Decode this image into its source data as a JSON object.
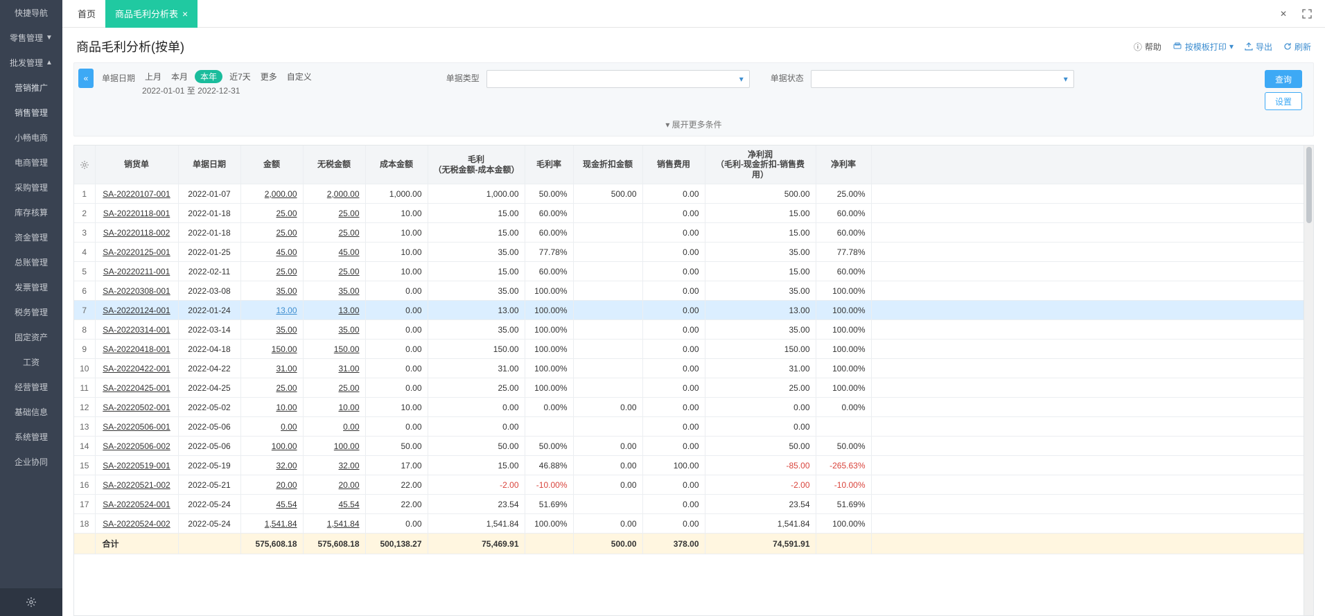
{
  "sidebar": {
    "items": [
      {
        "label": "快捷导航",
        "caret": ""
      },
      {
        "label": "零售管理",
        "caret": "▼"
      },
      {
        "label": "批发管理",
        "caret": "▲"
      },
      {
        "label": "营销推广",
        "caret": "",
        "sub": true
      },
      {
        "label": "销售管理",
        "caret": "",
        "sub": true
      },
      {
        "label": "小畅电商",
        "caret": ""
      },
      {
        "label": "电商管理",
        "caret": ""
      },
      {
        "label": "采购管理",
        "caret": ""
      },
      {
        "label": "库存核算",
        "caret": ""
      },
      {
        "label": "资金管理",
        "caret": ""
      },
      {
        "label": "总账管理",
        "caret": ""
      },
      {
        "label": "发票管理",
        "caret": ""
      },
      {
        "label": "税务管理",
        "caret": ""
      },
      {
        "label": "固定资产",
        "caret": ""
      },
      {
        "label": "工资",
        "caret": ""
      },
      {
        "label": "经营管理",
        "caret": ""
      },
      {
        "label": "基础信息",
        "caret": ""
      },
      {
        "label": "系统管理",
        "caret": ""
      },
      {
        "label": "企业协同",
        "caret": ""
      }
    ]
  },
  "tabs": {
    "home": "首页",
    "active": "商品毛利分析表"
  },
  "page": {
    "title": "商品毛利分析(按单)",
    "help": "帮助",
    "print": "按模板打印",
    "export": "导出",
    "refresh": "刷新"
  },
  "filters": {
    "dateLabel": "单据日期",
    "dtabs": [
      "上月",
      "本月",
      "本年",
      "近7天",
      "更多",
      "自定义"
    ],
    "dateRange": "2022-01-01 至 2022-12-31",
    "typeLabel": "单据类型",
    "stateLabel": "单据状态",
    "queryBtn": "查询",
    "settingBtn": "设置",
    "expand": "展开更多条件"
  },
  "table": {
    "columns": [
      "销货单",
      "单据日期",
      "金额",
      "无税金额",
      "成本金额",
      "毛利\n（无税金额-成本金额）",
      "毛利率",
      "现金折扣金额",
      "销售费用",
      "净利润\n（毛利-现金折扣-销售费用）",
      "净利率"
    ],
    "rows": [
      {
        "n": 1,
        "order": "SA-20220107-001",
        "date": "2022-01-07",
        "amt": "2,000.00",
        "ntax": "2,000.00",
        "cost": "1,000.00",
        "gp": "1,000.00",
        "gpr": "50.00%",
        "disc": "500.00",
        "exp": "0.00",
        "np": "500.00",
        "npr": "25.00%"
      },
      {
        "n": 2,
        "order": "SA-20220118-001",
        "date": "2022-01-18",
        "amt": "25.00",
        "ntax": "25.00",
        "cost": "10.00",
        "gp": "15.00",
        "gpr": "60.00%",
        "disc": "",
        "exp": "0.00",
        "np": "15.00",
        "npr": "60.00%"
      },
      {
        "n": 3,
        "order": "SA-20220118-002",
        "date": "2022-01-18",
        "amt": "25.00",
        "ntax": "25.00",
        "cost": "10.00",
        "gp": "15.00",
        "gpr": "60.00%",
        "disc": "",
        "exp": "0.00",
        "np": "15.00",
        "npr": "60.00%"
      },
      {
        "n": 4,
        "order": "SA-20220125-001",
        "date": "2022-01-25",
        "amt": "45.00",
        "ntax": "45.00",
        "cost": "10.00",
        "gp": "35.00",
        "gpr": "77.78%",
        "disc": "",
        "exp": "0.00",
        "np": "35.00",
        "npr": "77.78%"
      },
      {
        "n": 5,
        "order": "SA-20220211-001",
        "date": "2022-02-11",
        "amt": "25.00",
        "ntax": "25.00",
        "cost": "10.00",
        "gp": "15.00",
        "gpr": "60.00%",
        "disc": "",
        "exp": "0.00",
        "np": "15.00",
        "npr": "60.00%"
      },
      {
        "n": 6,
        "order": "SA-20220308-001",
        "date": "2022-03-08",
        "amt": "35.00",
        "ntax": "35.00",
        "cost": "0.00",
        "gp": "35.00",
        "gpr": "100.00%",
        "disc": "",
        "exp": "0.00",
        "np": "35.00",
        "npr": "100.00%"
      },
      {
        "n": 7,
        "order": "SA-20220124-001",
        "date": "2022-01-24",
        "amt": "13.00",
        "ntax": "13.00",
        "cost": "0.00",
        "gp": "13.00",
        "gpr": "100.00%",
        "disc": "",
        "exp": "0.00",
        "np": "13.00",
        "npr": "100.00%",
        "hl": true
      },
      {
        "n": 8,
        "order": "SA-20220314-001",
        "date": "2022-03-14",
        "amt": "35.00",
        "ntax": "35.00",
        "cost": "0.00",
        "gp": "35.00",
        "gpr": "100.00%",
        "disc": "",
        "exp": "0.00",
        "np": "35.00",
        "npr": "100.00%"
      },
      {
        "n": 9,
        "order": "SA-20220418-001",
        "date": "2022-04-18",
        "amt": "150.00",
        "ntax": "150.00",
        "cost": "0.00",
        "gp": "150.00",
        "gpr": "100.00%",
        "disc": "",
        "exp": "0.00",
        "np": "150.00",
        "npr": "100.00%"
      },
      {
        "n": 10,
        "order": "SA-20220422-001",
        "date": "2022-04-22",
        "amt": "31.00",
        "ntax": "31.00",
        "cost": "0.00",
        "gp": "31.00",
        "gpr": "100.00%",
        "disc": "",
        "exp": "0.00",
        "np": "31.00",
        "npr": "100.00%"
      },
      {
        "n": 11,
        "order": "SA-20220425-001",
        "date": "2022-04-25",
        "amt": "25.00",
        "ntax": "25.00",
        "cost": "0.00",
        "gp": "25.00",
        "gpr": "100.00%",
        "disc": "",
        "exp": "0.00",
        "np": "25.00",
        "npr": "100.00%"
      },
      {
        "n": 12,
        "order": "SA-20220502-001",
        "date": "2022-05-02",
        "amt": "10.00",
        "ntax": "10.00",
        "cost": "10.00",
        "gp": "0.00",
        "gpr": "0.00%",
        "disc": "0.00",
        "exp": "0.00",
        "np": "0.00",
        "npr": "0.00%"
      },
      {
        "n": 13,
        "order": "SA-20220506-001",
        "date": "2022-05-06",
        "amt": "0.00",
        "ntax": "0.00",
        "cost": "0.00",
        "gp": "0.00",
        "gpr": "",
        "disc": "",
        "exp": "0.00",
        "np": "0.00",
        "npr": ""
      },
      {
        "n": 14,
        "order": "SA-20220506-002",
        "date": "2022-05-06",
        "amt": "100.00",
        "ntax": "100.00",
        "cost": "50.00",
        "gp": "50.00",
        "gpr": "50.00%",
        "disc": "0.00",
        "exp": "0.00",
        "np": "50.00",
        "npr": "50.00%"
      },
      {
        "n": 15,
        "order": "SA-20220519-001",
        "date": "2022-05-19",
        "amt": "32.00",
        "ntax": "32.00",
        "cost": "17.00",
        "gp": "15.00",
        "gpr": "46.88%",
        "disc": "0.00",
        "exp": "100.00",
        "np": "-85.00",
        "npr": "-265.63%",
        "neg": true
      },
      {
        "n": 16,
        "order": "SA-20220521-002",
        "date": "2022-05-21",
        "amt": "20.00",
        "ntax": "20.00",
        "cost": "22.00",
        "gp": "-2.00",
        "gpr": "-10.00%",
        "disc": "0.00",
        "exp": "0.00",
        "np": "-2.00",
        "npr": "-10.00%",
        "neg": true,
        "gpneg": true
      },
      {
        "n": 17,
        "order": "SA-20220524-001",
        "date": "2022-05-24",
        "amt": "45.54",
        "ntax": "45.54",
        "cost": "22.00",
        "gp": "23.54",
        "gpr": "51.69%",
        "disc": "",
        "exp": "0.00",
        "np": "23.54",
        "npr": "51.69%"
      },
      {
        "n": 18,
        "order": "SA-20220524-002",
        "date": "2022-05-24",
        "amt": "1,541.84",
        "ntax": "1,541.84",
        "cost": "0.00",
        "gp": "1,541.84",
        "gpr": "100.00%",
        "disc": "0.00",
        "exp": "0.00",
        "np": "1,541.84",
        "npr": "100.00%"
      }
    ],
    "totalLabel": "合计",
    "totals": {
      "amt": "575,608.18",
      "ntax": "575,608.18",
      "cost": "500,138.27",
      "gp": "75,469.91",
      "disc": "500.00",
      "exp": "378.00",
      "np": "74,591.91"
    }
  }
}
